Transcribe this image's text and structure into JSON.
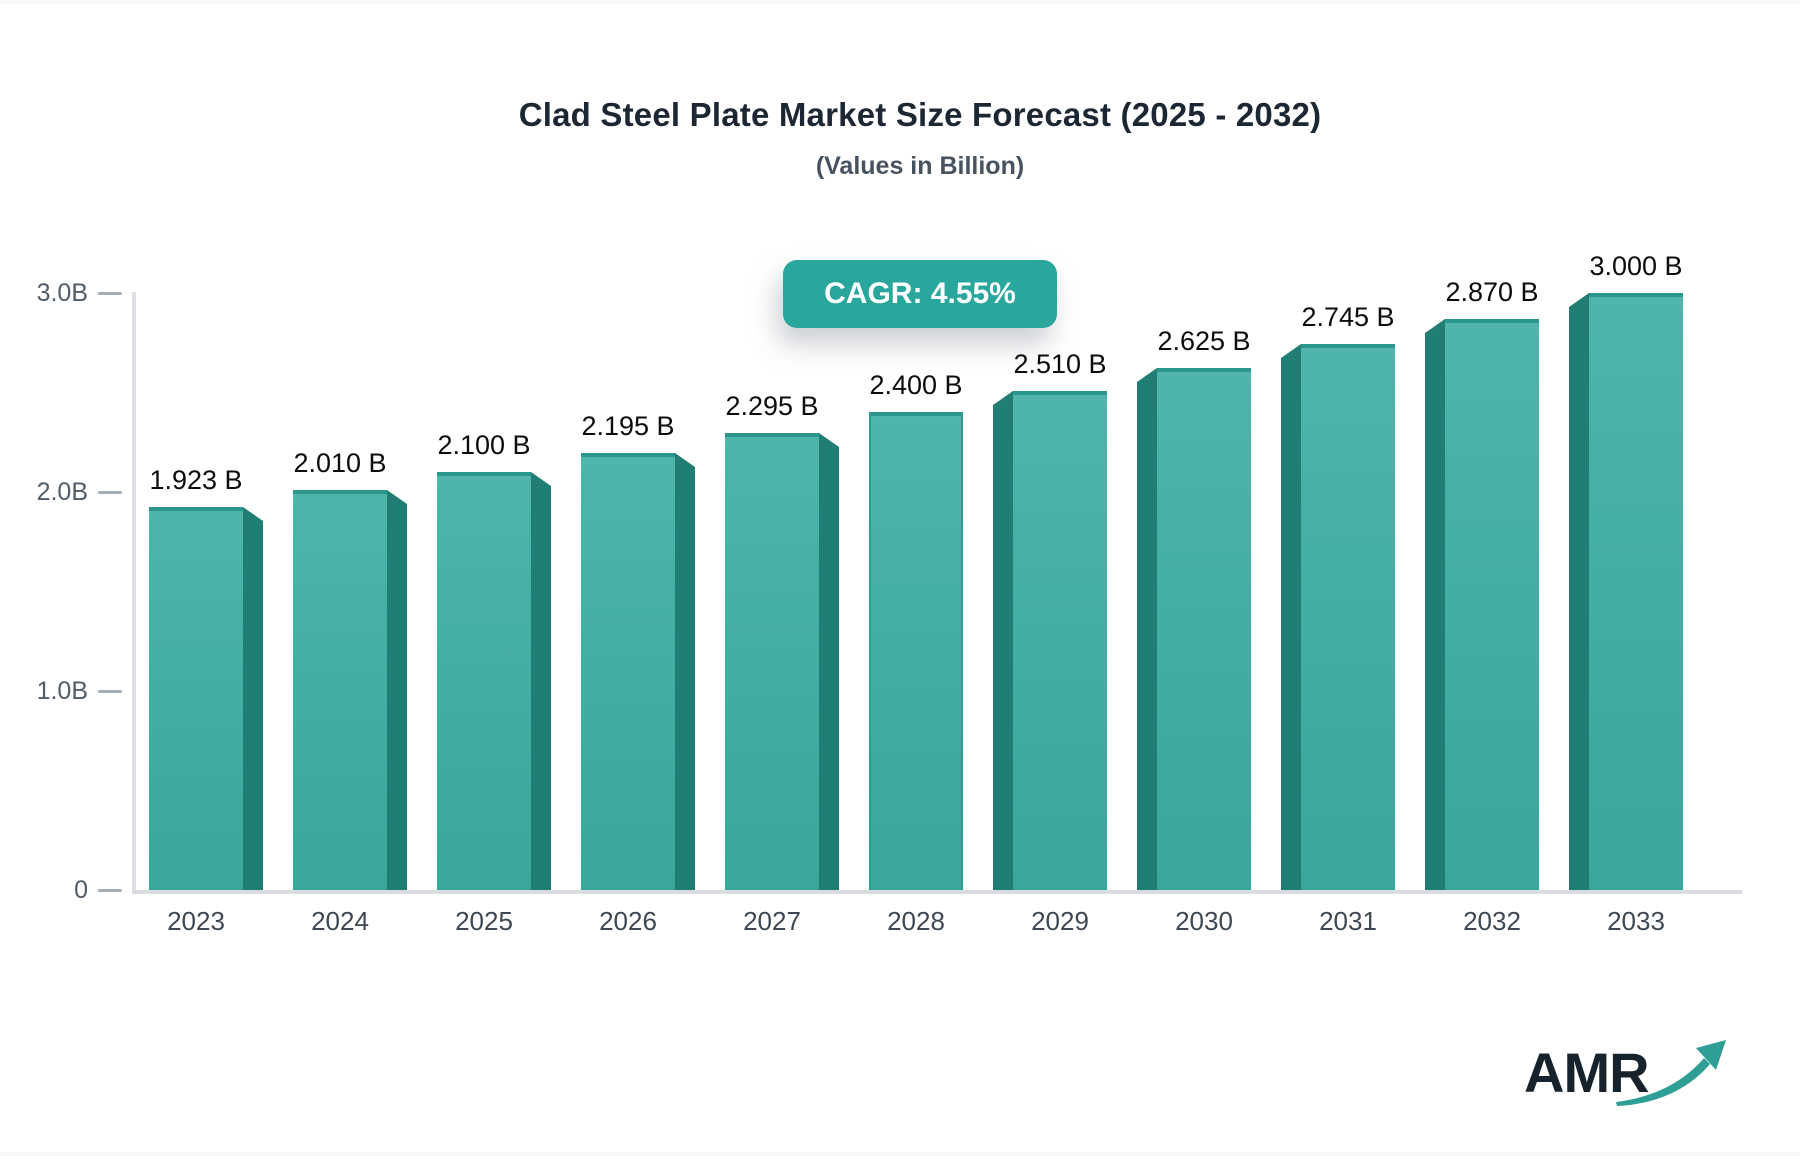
{
  "header": {
    "title": "Clad Steel Plate Market Size Forecast (2025 - 2032)",
    "subtitle": "(Values in Billion)"
  },
  "badge": {
    "label": "CAGR: 4.55%",
    "color": "#2aa79c"
  },
  "chart_data": {
    "type": "bar",
    "title": "Clad Steel Plate Market Size Forecast (2025 - 2032)",
    "subtitle": "(Values in Billion)",
    "categories": [
      "2023",
      "2024",
      "2025",
      "2026",
      "2027",
      "2028",
      "2029",
      "2030",
      "2031",
      "2032",
      "2033"
    ],
    "values": [
      1.923,
      2.01,
      2.1,
      2.195,
      2.295,
      2.4,
      2.51,
      2.625,
      2.745,
      2.87,
      3.0
    ],
    "bar_labels": [
      "1.923 B",
      "2.010 B",
      "2.100 B",
      "2.195 B",
      "2.295 B",
      "2.400 B",
      "2.510 B",
      "2.625 B",
      "2.745 B",
      "2.870 B",
      "3.000 B"
    ],
    "xlabel": "",
    "ylabel": "",
    "ylim": [
      0,
      3.0
    ],
    "yticks": [
      {
        "value": 3.0,
        "label": "3.0B"
      },
      {
        "value": 2.0,
        "label": "2.0B"
      },
      {
        "value": 1.0,
        "label": "1.0B"
      },
      {
        "value": 0.0,
        "label": "0"
      }
    ],
    "grid": false,
    "legend": false,
    "bar_front_color_top": "#4fb5ab",
    "bar_front_color_bottom": "#3aa79b",
    "bar_side_color": "#1f7d73",
    "bar_top_edge_color": "#2a968c",
    "perspective": "center-vanishing: bars left of 2028 show right side face, bars right of 2028 show left side face"
  },
  "logo": {
    "text": "AMR",
    "arrow_color": "#2f9e94"
  }
}
